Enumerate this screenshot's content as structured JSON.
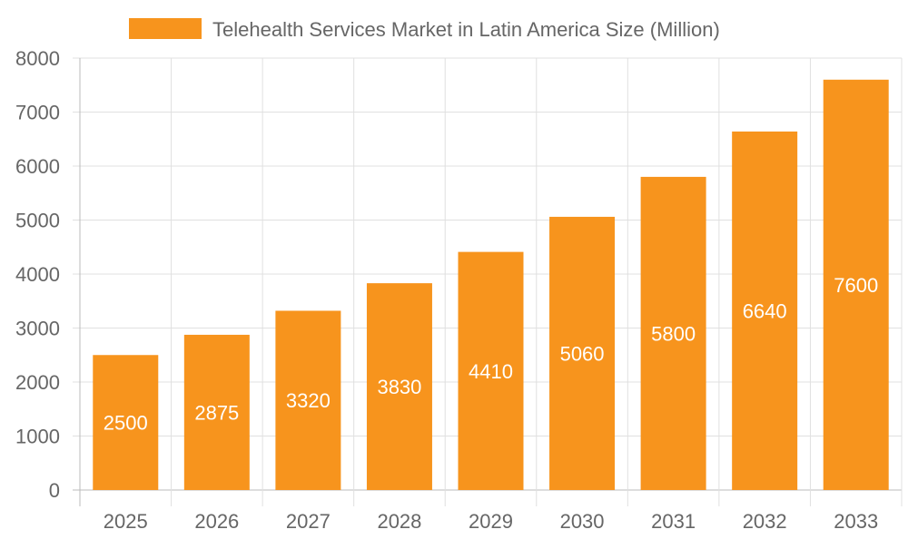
{
  "chart_data": {
    "type": "bar",
    "title": "",
    "xlabel": "",
    "ylabel": "",
    "categories": [
      "2025",
      "2026",
      "2027",
      "2028",
      "2029",
      "2030",
      "2031",
      "2032",
      "2033"
    ],
    "series": [
      {
        "name": "Telehealth Services Market in Latin America Size (Million)",
        "values": [
          2500,
          2875,
          3320,
          3830,
          4410,
          5060,
          5800,
          6640,
          7600
        ],
        "color": "#F7941D"
      }
    ],
    "ylim": [
      0,
      8000
    ],
    "yticks": [
      "0",
      "1000",
      "2000",
      "3000",
      "4000",
      "5000",
      "6000",
      "7000",
      "8000"
    ],
    "grid": true,
    "legend": "top-center",
    "data_labels": true
  }
}
